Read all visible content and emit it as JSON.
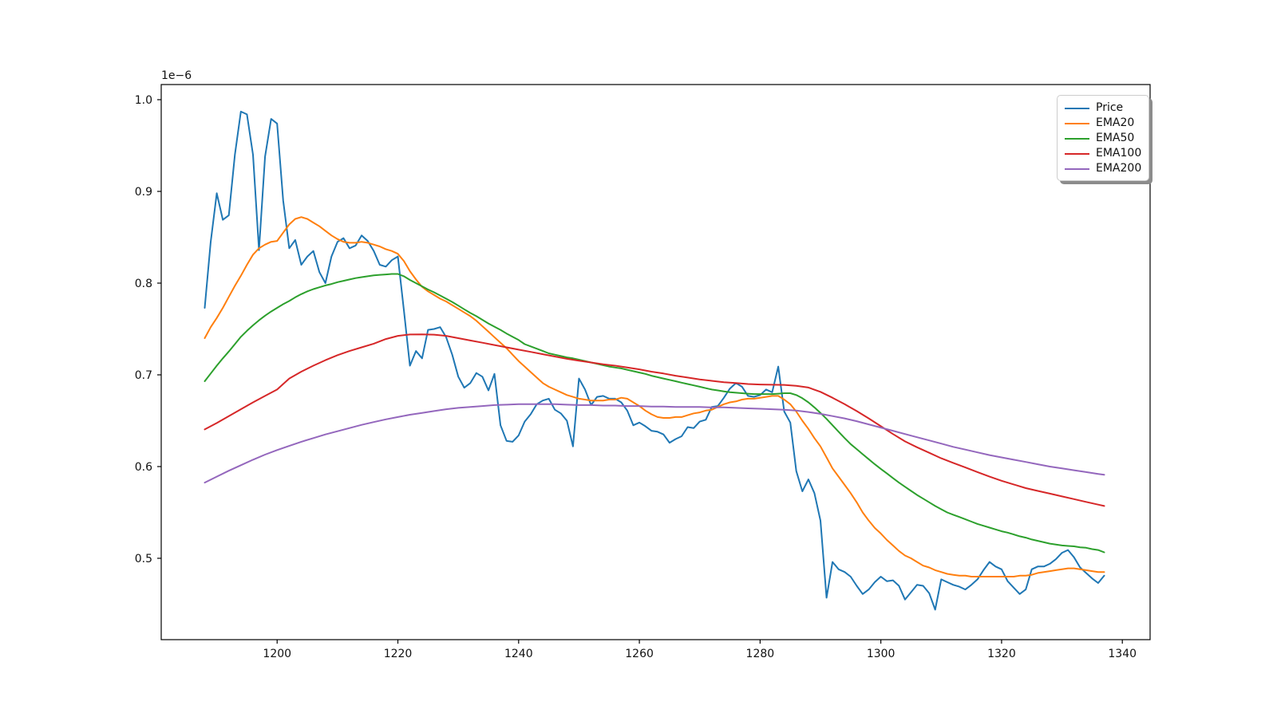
{
  "chart_data": {
    "type": "line",
    "grid": false,
    "background_color": "#ffffff",
    "y_offset_label": "1e−6",
    "xlim": [
      1180.8,
      1344.6
    ],
    "ylim": [
      0.4113,
      1.0165
    ],
    "x_ticks": [
      1200,
      1220,
      1240,
      1260,
      1280,
      1300,
      1320,
      1340
    ],
    "x_tick_labels": [
      "1200",
      "1220",
      "1240",
      "1260",
      "1280",
      "1300",
      "1320",
      "1340"
    ],
    "y_ticks": [
      0.5,
      0.6,
      0.7,
      0.8,
      0.9,
      1.0
    ],
    "y_tick_labels": [
      "0.5",
      "0.6",
      "0.7",
      "0.8",
      "0.9",
      "1.0"
    ],
    "legend": {
      "position": "upper right",
      "fancybox": true,
      "shadow": true,
      "border_color": "#cccccc",
      "shadow_color": "#8c8c8c",
      "labels": [
        "Price",
        "EMA20",
        "EMA50",
        "EMA100",
        "EMA200"
      ]
    },
    "colors": {
      "spine": "#000000",
      "tick_label": "#111111"
    },
    "series": [
      {
        "name": "Price",
        "color": "#1f77b4",
        "x_start": 1188,
        "x_step": 1,
        "values": [
          0.773,
          0.845,
          0.898,
          0.869,
          0.874,
          0.94,
          0.987,
          0.984,
          0.94,
          0.836,
          0.938,
          0.979,
          0.974,
          0.89,
          0.838,
          0.847,
          0.82,
          0.829,
          0.835,
          0.812,
          0.8,
          0.829,
          0.845,
          0.849,
          0.838,
          0.841,
          0.852,
          0.846,
          0.835,
          0.82,
          0.818,
          0.825,
          0.829,
          0.77,
          0.71,
          0.726,
          0.718,
          0.749,
          0.75,
          0.752,
          0.741,
          0.722,
          0.698,
          0.686,
          0.691,
          0.702,
          0.698,
          0.683,
          0.701,
          0.645,
          0.628,
          0.627,
          0.634,
          0.649,
          0.657,
          0.668,
          0.672,
          0.674,
          0.662,
          0.658,
          0.65,
          0.622,
          0.696,
          0.684,
          0.667,
          0.676,
          0.677,
          0.674,
          0.674,
          0.67,
          0.661,
          0.645,
          0.648,
          0.644,
          0.639,
          0.638,
          0.635,
          0.626,
          0.63,
          0.633,
          0.643,
          0.642,
          0.649,
          0.651,
          0.665,
          0.666,
          0.675,
          0.685,
          0.691,
          0.687,
          0.677,
          0.676,
          0.678,
          0.684,
          0.681,
          0.709,
          0.66,
          0.648,
          0.595,
          0.573,
          0.586,
          0.571,
          0.541,
          0.457,
          0.496,
          0.488,
          0.485,
          0.48,
          0.47,
          0.461,
          0.466,
          0.474,
          0.48,
          0.475,
          0.476,
          0.47,
          0.455,
          0.463,
          0.471,
          0.47,
          0.462,
          0.444,
          0.477,
          0.474,
          0.471,
          0.469,
          0.466,
          0.471,
          0.477,
          0.487,
          0.496,
          0.491,
          0.488,
          0.475,
          0.468,
          0.461,
          0.466,
          0.488,
          0.491,
          0.491,
          0.494,
          0.499,
          0.506,
          0.509,
          0.501,
          0.49,
          0.484,
          0.478,
          0.473,
          0.481
        ]
      },
      {
        "name": "EMA20",
        "color": "#ff7f0e",
        "x_start": 1188,
        "x_step": 1,
        "values": [
          0.74,
          0.752,
          0.762,
          0.773,
          0.785,
          0.797,
          0.808,
          0.82,
          0.831,
          0.838,
          0.842,
          0.845,
          0.846,
          0.855,
          0.864,
          0.87,
          0.872,
          0.87,
          0.866,
          0.862,
          0.857,
          0.852,
          0.848,
          0.845,
          0.844,
          0.844,
          0.845,
          0.844,
          0.842,
          0.84,
          0.837,
          0.835,
          0.832,
          0.824,
          0.813,
          0.804,
          0.796,
          0.791,
          0.787,
          0.783,
          0.78,
          0.776,
          0.772,
          0.768,
          0.764,
          0.759,
          0.753,
          0.747,
          0.741,
          0.735,
          0.729,
          0.722,
          0.715,
          0.709,
          0.703,
          0.697,
          0.691,
          0.687,
          0.684,
          0.681,
          0.678,
          0.676,
          0.674,
          0.673,
          0.672,
          0.672,
          0.672,
          0.673,
          0.673,
          0.675,
          0.674,
          0.67,
          0.666,
          0.661,
          0.657,
          0.654,
          0.653,
          0.653,
          0.654,
          0.654,
          0.656,
          0.658,
          0.659,
          0.661,
          0.662,
          0.665,
          0.668,
          0.67,
          0.671,
          0.673,
          0.674,
          0.674,
          0.675,
          0.676,
          0.677,
          0.677,
          0.673,
          0.668,
          0.66,
          0.65,
          0.641,
          0.631,
          0.622,
          0.61,
          0.598,
          0.589,
          0.58,
          0.571,
          0.561,
          0.55,
          0.541,
          0.533,
          0.527,
          0.52,
          0.514,
          0.508,
          0.503,
          0.5,
          0.496,
          0.492,
          0.49,
          0.487,
          0.485,
          0.483,
          0.482,
          0.481,
          0.481,
          0.48,
          0.48,
          0.48,
          0.48,
          0.48,
          0.48,
          0.48,
          0.48,
          0.481,
          0.481,
          0.482,
          0.484,
          0.485,
          0.486,
          0.487,
          0.488,
          0.489,
          0.489,
          0.488,
          0.487,
          0.486,
          0.485,
          0.485
        ]
      },
      {
        "name": "EMA50",
        "color": "#2ca02c",
        "x_start": 1188,
        "x_step": 1,
        "values": [
          0.693,
          0.7015,
          0.71,
          0.718,
          0.7255,
          0.7335,
          0.7415,
          0.748,
          0.754,
          0.7595,
          0.7645,
          0.769,
          0.773,
          0.777,
          0.7805,
          0.7845,
          0.788,
          0.791,
          0.7935,
          0.7955,
          0.7975,
          0.799,
          0.801,
          0.8025,
          0.804,
          0.8055,
          0.8065,
          0.8075,
          0.8085,
          0.809,
          0.8095,
          0.81,
          0.81,
          0.8075,
          0.8035,
          0.8,
          0.7965,
          0.793,
          0.79,
          0.7865,
          0.783,
          0.7795,
          0.7755,
          0.7715,
          0.7675,
          0.764,
          0.76,
          0.756,
          0.7525,
          0.749,
          0.745,
          0.7415,
          0.738,
          0.7335,
          0.731,
          0.7285,
          0.726,
          0.7235,
          0.722,
          0.7205,
          0.719,
          0.718,
          0.7165,
          0.715,
          0.7135,
          0.712,
          0.7105,
          0.709,
          0.708,
          0.707,
          0.7055,
          0.704,
          0.7025,
          0.701,
          0.699,
          0.6975,
          0.696,
          0.6945,
          0.693,
          0.6915,
          0.69,
          0.6885,
          0.687,
          0.6855,
          0.684,
          0.683,
          0.682,
          0.681,
          0.6805,
          0.68,
          0.6795,
          0.679,
          0.679,
          0.679,
          0.679,
          0.6795,
          0.68,
          0.68,
          0.678,
          0.6745,
          0.67,
          0.6645,
          0.6585,
          0.652,
          0.645,
          0.638,
          0.631,
          0.6245,
          0.619,
          0.6135,
          0.608,
          0.6025,
          0.5975,
          0.5925,
          0.5875,
          0.5825,
          0.578,
          0.5735,
          0.569,
          0.565,
          0.561,
          0.557,
          0.5535,
          0.55,
          0.5475,
          0.545,
          0.5425,
          0.54,
          0.5375,
          0.5355,
          0.5335,
          0.5315,
          0.5295,
          0.528,
          0.526,
          0.524,
          0.5225,
          0.5205,
          0.519,
          0.5175,
          0.516,
          0.515,
          0.514,
          0.5135,
          0.513,
          0.512,
          0.5115,
          0.51,
          0.509,
          0.5065
        ]
      },
      {
        "name": "EMA100",
        "color": "#d62728",
        "points": [
          [
            1188,
            0.6405
          ],
          [
            1190,
            0.6475
          ],
          [
            1192,
            0.655
          ],
          [
            1194,
            0.6625
          ],
          [
            1196,
            0.67
          ],
          [
            1198,
            0.677
          ],
          [
            1200,
            0.684
          ],
          [
            1202,
            0.696
          ],
          [
            1204,
            0.7035
          ],
          [
            1206,
            0.71
          ],
          [
            1208,
            0.716
          ],
          [
            1210,
            0.7215
          ],
          [
            1212,
            0.726
          ],
          [
            1214,
            0.73
          ],
          [
            1216,
            0.734
          ],
          [
            1218,
            0.739
          ],
          [
            1220,
            0.7425
          ],
          [
            1222,
            0.744
          ],
          [
            1224,
            0.7442
          ],
          [
            1226,
            0.7438
          ],
          [
            1228,
            0.7425
          ],
          [
            1230,
            0.74
          ],
          [
            1232,
            0.7375
          ],
          [
            1234,
            0.735
          ],
          [
            1236,
            0.7325
          ],
          [
            1238,
            0.73
          ],
          [
            1240,
            0.7275
          ],
          [
            1242,
            0.725
          ],
          [
            1244,
            0.7225
          ],
          [
            1246,
            0.72
          ],
          [
            1248,
            0.7175
          ],
          [
            1250,
            0.7155
          ],
          [
            1252,
            0.7135
          ],
          [
            1254,
            0.7115
          ],
          [
            1256,
            0.71
          ],
          [
            1258,
            0.708
          ],
          [
            1260,
            0.706
          ],
          [
            1262,
            0.7035
          ],
          [
            1264,
            0.7015
          ],
          [
            1266,
            0.699
          ],
          [
            1268,
            0.697
          ],
          [
            1270,
            0.695
          ],
          [
            1272,
            0.6935
          ],
          [
            1274,
            0.692
          ],
          [
            1276,
            0.691
          ],
          [
            1278,
            0.69
          ],
          [
            1280,
            0.6895
          ],
          [
            1282,
            0.6892
          ],
          [
            1284,
            0.689
          ],
          [
            1286,
            0.688
          ],
          [
            1288,
            0.6862
          ],
          [
            1290,
            0.6815
          ],
          [
            1292,
            0.675
          ],
          [
            1294,
            0.668
          ],
          [
            1296,
            0.6605
          ],
          [
            1298,
            0.6525
          ],
          [
            1300,
            0.644
          ],
          [
            1302,
            0.6355
          ],
          [
            1304,
            0.6275
          ],
          [
            1306,
            0.621
          ],
          [
            1308,
            0.615
          ],
          [
            1310,
            0.609
          ],
          [
            1312,
            0.604
          ],
          [
            1314,
            0.599
          ],
          [
            1316,
            0.594
          ],
          [
            1318,
            0.589
          ],
          [
            1320,
            0.5845
          ],
          [
            1322,
            0.5805
          ],
          [
            1324,
            0.5765
          ],
          [
            1326,
            0.5735
          ],
          [
            1328,
            0.5705
          ],
          [
            1330,
            0.5675
          ],
          [
            1332,
            0.5645
          ],
          [
            1334,
            0.5615
          ],
          [
            1336,
            0.5585
          ],
          [
            1337,
            0.557
          ]
        ]
      },
      {
        "name": "EMA200",
        "color": "#9467bd",
        "points": [
          [
            1188,
            0.5825
          ],
          [
            1190,
            0.589
          ],
          [
            1192,
            0.5955
          ],
          [
            1194,
            0.6015
          ],
          [
            1196,
            0.6075
          ],
          [
            1198,
            0.613
          ],
          [
            1200,
            0.618
          ],
          [
            1202,
            0.6225
          ],
          [
            1204,
            0.627
          ],
          [
            1206,
            0.631
          ],
          [
            1208,
            0.635
          ],
          [
            1210,
            0.6385
          ],
          [
            1212,
            0.642
          ],
          [
            1214,
            0.6455
          ],
          [
            1216,
            0.6485
          ],
          [
            1218,
            0.6515
          ],
          [
            1220,
            0.654
          ],
          [
            1222,
            0.6565
          ],
          [
            1224,
            0.6585
          ],
          [
            1226,
            0.6605
          ],
          [
            1228,
            0.6625
          ],
          [
            1230,
            0.664
          ],
          [
            1232,
            0.665
          ],
          [
            1234,
            0.666
          ],
          [
            1236,
            0.667
          ],
          [
            1238,
            0.6675
          ],
          [
            1240,
            0.668
          ],
          [
            1242,
            0.668
          ],
          [
            1244,
            0.668
          ],
          [
            1246,
            0.668
          ],
          [
            1248,
            0.6675
          ],
          [
            1250,
            0.667
          ],
          [
            1252,
            0.667
          ],
          [
            1254,
            0.6665
          ],
          [
            1256,
            0.6665
          ],
          [
            1258,
            0.666
          ],
          [
            1260,
            0.666
          ],
          [
            1262,
            0.6655
          ],
          [
            1264,
            0.6655
          ],
          [
            1266,
            0.665
          ],
          [
            1268,
            0.665
          ],
          [
            1270,
            0.665
          ],
          [
            1272,
            0.6645
          ],
          [
            1274,
            0.6645
          ],
          [
            1276,
            0.664
          ],
          [
            1278,
            0.6635
          ],
          [
            1280,
            0.663
          ],
          [
            1282,
            0.6625
          ],
          [
            1284,
            0.662
          ],
          [
            1286,
            0.661
          ],
          [
            1288,
            0.6595
          ],
          [
            1290,
            0.6575
          ],
          [
            1292,
            0.655
          ],
          [
            1294,
            0.6525
          ],
          [
            1296,
            0.6495
          ],
          [
            1298,
            0.646
          ],
          [
            1300,
            0.6425
          ],
          [
            1302,
            0.639
          ],
          [
            1304,
            0.6355
          ],
          [
            1306,
            0.632
          ],
          [
            1308,
            0.6285
          ],
          [
            1310,
            0.625
          ],
          [
            1312,
            0.6215
          ],
          [
            1314,
            0.6185
          ],
          [
            1316,
            0.6155
          ],
          [
            1318,
            0.6125
          ],
          [
            1320,
            0.61
          ],
          [
            1322,
            0.6075
          ],
          [
            1324,
            0.605
          ],
          [
            1326,
            0.6025
          ],
          [
            1328,
            0.6
          ],
          [
            1330,
            0.598
          ],
          [
            1332,
            0.596
          ],
          [
            1334,
            0.594
          ],
          [
            1336,
            0.592
          ],
          [
            1337,
            0.591
          ]
        ]
      }
    ]
  }
}
